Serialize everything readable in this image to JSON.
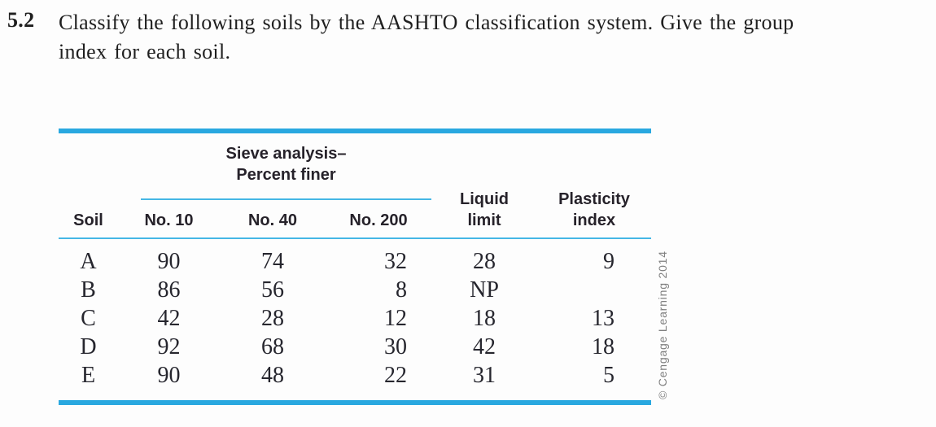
{
  "problem": {
    "number": "5.2",
    "lines": [
      "Classify the following soils by the AASHTO classification system. Give the group",
      "index for each soil."
    ]
  },
  "table": {
    "sieve_header": {
      "line1": "Sieve analysis–",
      "line2": "Percent finer"
    },
    "columns": [
      {
        "id": "soil",
        "label": "Soil"
      },
      {
        "id": "no10",
        "label": "No. 10"
      },
      {
        "id": "no40",
        "label": "No. 40"
      },
      {
        "id": "no200",
        "label": "No. 200"
      },
      {
        "id": "liquid_limit",
        "line1": "Liquid",
        "line2": "limit"
      },
      {
        "id": "plasticity_index",
        "line1": "Plasticity",
        "line2": "index"
      }
    ],
    "rows": [
      {
        "soil": "A",
        "no10": "90",
        "no40": "74",
        "no200": "32",
        "liquid_limit": "28",
        "plasticity_index": "9"
      },
      {
        "soil": "B",
        "no10": "86",
        "no40": "56",
        "no200": "8",
        "liquid_limit": "NP",
        "plasticity_index": ""
      },
      {
        "soil": "C",
        "no10": "42",
        "no40": "28",
        "no200": "12",
        "liquid_limit": "18",
        "plasticity_index": "13"
      },
      {
        "soil": "D",
        "no10": "92",
        "no40": "68",
        "no200": "30",
        "liquid_limit": "42",
        "plasticity_index": "18"
      },
      {
        "soil": "E",
        "no10": "90",
        "no40": "48",
        "no200": "22",
        "liquid_limit": "31",
        "plasticity_index": "5"
      }
    ]
  },
  "credit": "© Cengage Learning 2014",
  "colors": {
    "rule_thick": "#29A8E0",
    "rule_thin": "#45B7E5",
    "text": "#1F1F1F",
    "credit_gray": "#7F7F7F"
  }
}
